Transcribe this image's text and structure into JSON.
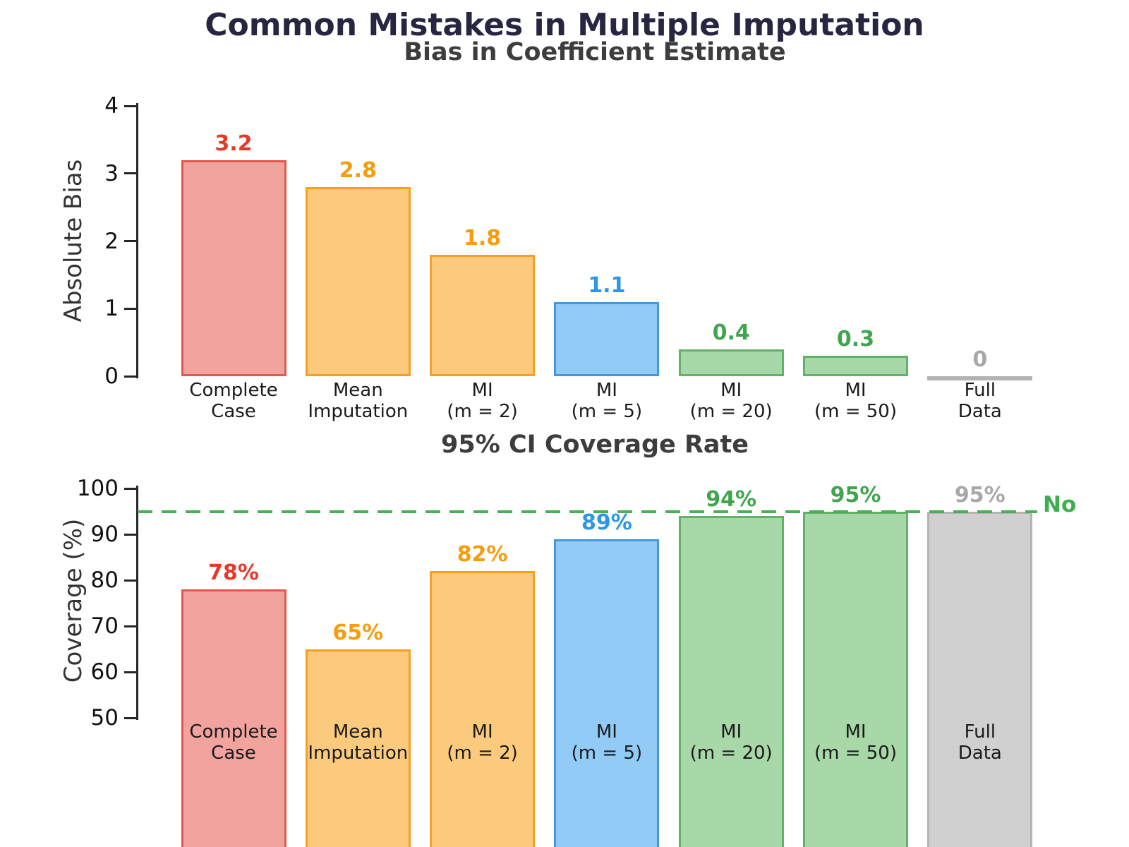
{
  "suptitle": "Common Mistakes in Multiple Imputation",
  "palette": {
    "red": {
      "fill": "#f2a39e",
      "edge": "#e1584c",
      "label": "#e53a2b"
    },
    "orange": {
      "fill": "#fcca7d",
      "edge": "#f5a01f",
      "label": "#f69c0e"
    },
    "blue": {
      "fill": "#92cbf6",
      "edge": "#4497dd",
      "label": "#2d95ea"
    },
    "green": {
      "fill": "#a8d7a8",
      "edge": "#63b168",
      "label": "#41a54e"
    },
    "gray": {
      "fill": "#d0d0d0",
      "edge": "#b3b3b3",
      "label": "#a8a8a8"
    }
  },
  "chart_data": [
    {
      "type": "bar",
      "title": "Bias in Coefficient Estimate",
      "xlabel": "",
      "ylabel": "Absolute Bias",
      "ylim": [
        0,
        4
      ],
      "yticks": [
        0,
        1,
        2,
        3,
        4
      ],
      "grid": false,
      "legend": null,
      "categories": [
        "Complete\nCase",
        "Mean\nImputation",
        "MI\n(m = 2)",
        "MI\n(m = 5)",
        "MI\n(m = 20)",
        "MI\n(m = 50)",
        "Full\nData"
      ],
      "values": [
        3.2,
        2.8,
        1.8,
        1.1,
        0.4,
        0.3,
        0
      ],
      "value_labels": [
        "3.2",
        "2.8",
        "1.8",
        "1.1",
        "0.4",
        "0.3",
        "0"
      ],
      "color_keys": [
        "red",
        "orange",
        "orange",
        "blue",
        "green",
        "green",
        "gray"
      ]
    },
    {
      "type": "bar",
      "title": "95% CI Coverage Rate",
      "xlabel": "",
      "ylabel": "Coverage (%)",
      "ylim": [
        50,
        100
      ],
      "yticks": [
        50,
        60,
        70,
        80,
        90,
        100
      ],
      "grid": false,
      "legend": null,
      "categories": [
        "Complete\nCase",
        "Mean\nImputation",
        "MI\n(m = 2)",
        "MI\n(m = 5)",
        "MI\n(m = 20)",
        "MI\n(m = 50)",
        "Full\nData"
      ],
      "values": [
        78,
        65,
        82,
        89,
        94,
        95,
        95
      ],
      "value_labels": [
        "78%",
        "65%",
        "82%",
        "89%",
        "94%",
        "95%",
        "95%"
      ],
      "color_keys": [
        "red",
        "orange",
        "orange",
        "blue",
        "green",
        "green",
        "gray"
      ],
      "reference_line": {
        "value": 95,
        "label": "No",
        "color": "#4bb054",
        "label_color": "#3fae4e"
      }
    }
  ]
}
